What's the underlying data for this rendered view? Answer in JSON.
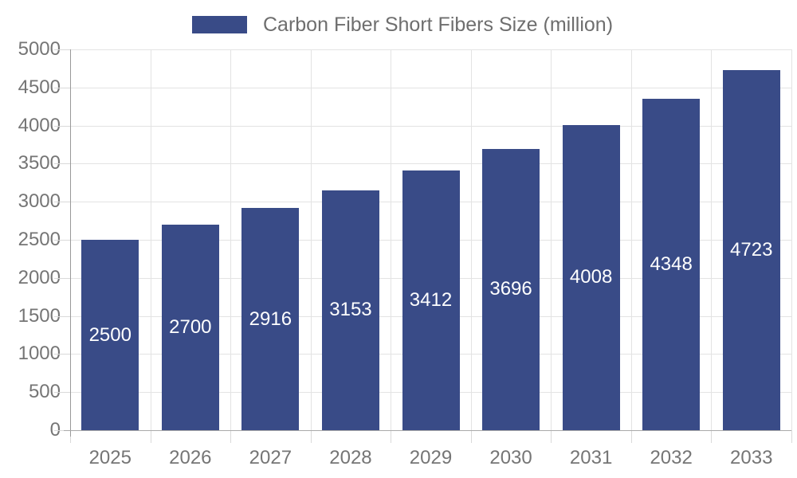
{
  "legend": {
    "label": "Carbon Fiber Short Fibers Size (million)"
  },
  "colors": {
    "bar": "#394b87",
    "bar_label_text": "#ffffff",
    "grid_line": "#e3e3e3",
    "y_axis_line": "#999999",
    "x_axis_line": "#aaaaaa",
    "tick_mark": "#d9d9d9",
    "axis_label_text": "#757575",
    "legend_text": "#6e6e6e",
    "background": "#ffffff"
  },
  "chart_data": {
    "type": "bar",
    "title": "Carbon Fiber Short Fibers Size (million)",
    "categories": [
      "2025",
      "2026",
      "2027",
      "2028",
      "2029",
      "2030",
      "2031",
      "2032",
      "2033"
    ],
    "values": [
      2500,
      2700,
      2916,
      3153,
      3412,
      3696,
      4008,
      4348,
      4723
    ],
    "series_name": "Carbon Fiber Short Fibers Size (million)",
    "xlabel": "",
    "ylabel": "",
    "ylim": [
      0,
      5000
    ],
    "yticks": [
      0,
      500,
      1000,
      1500,
      2000,
      2500,
      3000,
      3500,
      4000,
      4500,
      5000
    ],
    "grid": true,
    "legend_position": "top",
    "bar_value_labels": "inside-center"
  }
}
